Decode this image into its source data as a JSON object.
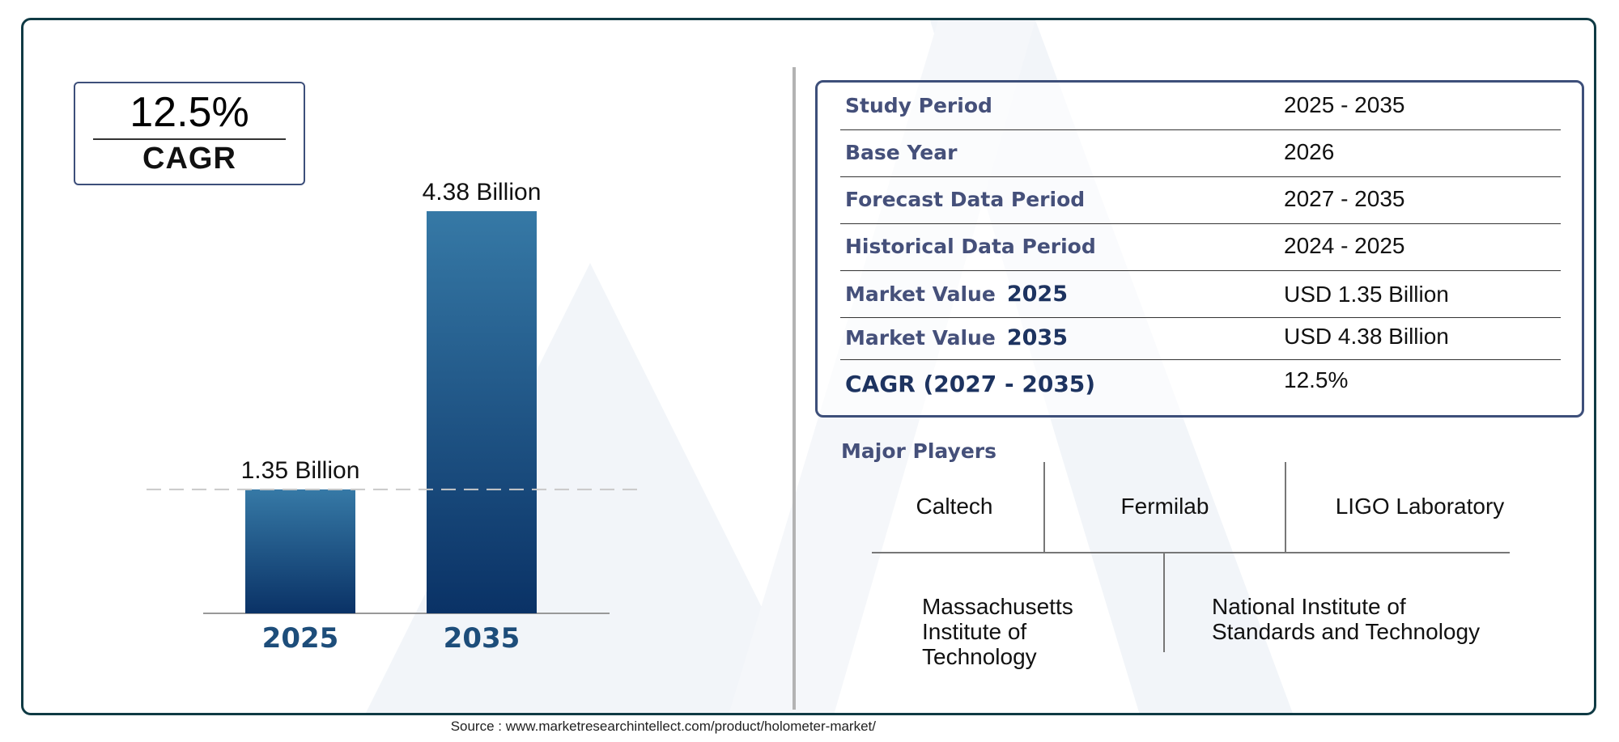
{
  "cagr_badge": {
    "value": "12.5%",
    "label": "CAGR"
  },
  "chart_data": {
    "type": "bar",
    "categories": [
      "2025",
      "2035"
    ],
    "values": [
      1.35,
      4.38
    ],
    "value_labels": [
      "1.35 Billion",
      "4.38 Billion"
    ],
    "bar_color_top": "#3679a6",
    "bar_color_bottom": "#0a3266",
    "tick_color": "#1d4d7a",
    "reference_line": "dashed at first bar value",
    "ylim": [
      0,
      4.38
    ],
    "grid": false,
    "legend": "none"
  },
  "info_table": {
    "rows": [
      {
        "label": "Study Period",
        "value": "2025 - 2035"
      },
      {
        "label": "Base Year",
        "value": "2026"
      },
      {
        "label": "Forecast Data Period",
        "value": "2027 - 2035"
      },
      {
        "label": "Historical Data Period",
        "value": "2024 - 2025"
      },
      {
        "label": "Market Value",
        "year": "2025",
        "value": "USD 1.35 Billion"
      },
      {
        "label": "Market Value",
        "year": "2035",
        "value": "USD 4.38 Billion"
      },
      {
        "label": "CAGR (2027 - 2035)",
        "value": "12.5%"
      }
    ]
  },
  "players": {
    "title": "Major Players",
    "items": [
      "Caltech",
      "Fermilab",
      "LIGO Laboratory",
      "Massachusetts Institute of Technology",
      "National Institute of Standards and Technology"
    ]
  },
  "source": "Source : www.marketresearchintellect.com/product/holometer-market/",
  "colors": {
    "frame": "#0f3a44",
    "accent": "#45507a",
    "dark_accent": "#1d3360"
  }
}
